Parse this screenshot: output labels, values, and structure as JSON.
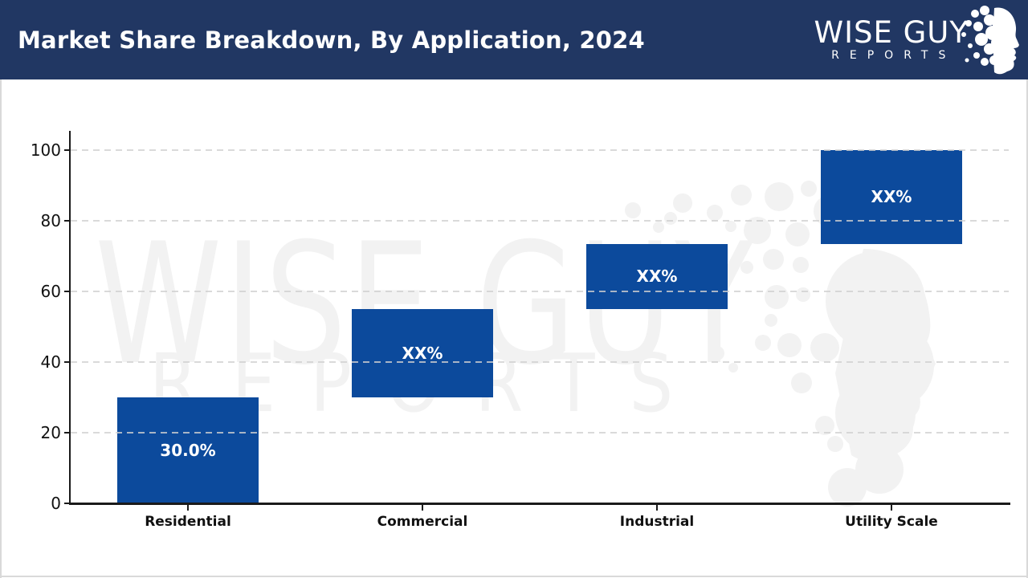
{
  "header": {
    "title": "Market Share Breakdown, By Application, 2024",
    "logo": {
      "line1": "WISE GUY",
      "line2": "REPORTS"
    }
  },
  "watermark": {
    "line1": "WISE GUY",
    "line2": "REPORTS"
  },
  "chart_data": {
    "type": "bar",
    "subtype": "waterfall",
    "title": "Market Share Breakdown, By Application, 2024",
    "categories": [
      "Residential",
      "Commercial",
      "Industrial",
      "Utility Scale"
    ],
    "segments": [
      {
        "category": "Residential",
        "start": 0,
        "end": 30,
        "label": "30.0%"
      },
      {
        "category": "Commercial",
        "start": 30,
        "end": 55,
        "label": "XX%"
      },
      {
        "category": "Industrial",
        "start": 55,
        "end": 73.5,
        "label": "XX%"
      },
      {
        "category": "Utility Scale",
        "start": 73.5,
        "end": 100,
        "label": "XX%"
      }
    ],
    "yticks": [
      0,
      20,
      40,
      60,
      80,
      100
    ],
    "ylim": [
      0,
      105
    ],
    "xlabel": "",
    "ylabel": "",
    "grid": "dashed-horizontal-above-bars",
    "legend": "none",
    "colors": {
      "bar": "#0c4a9c",
      "header_bg": "#213763",
      "grid": "#d4d4d4",
      "axis": "#1a1a1a",
      "tick_text": "#111111",
      "bar_label_text": "#ffffff",
      "title_text": "#ffffff",
      "watermark": "#f2f2f2"
    }
  }
}
